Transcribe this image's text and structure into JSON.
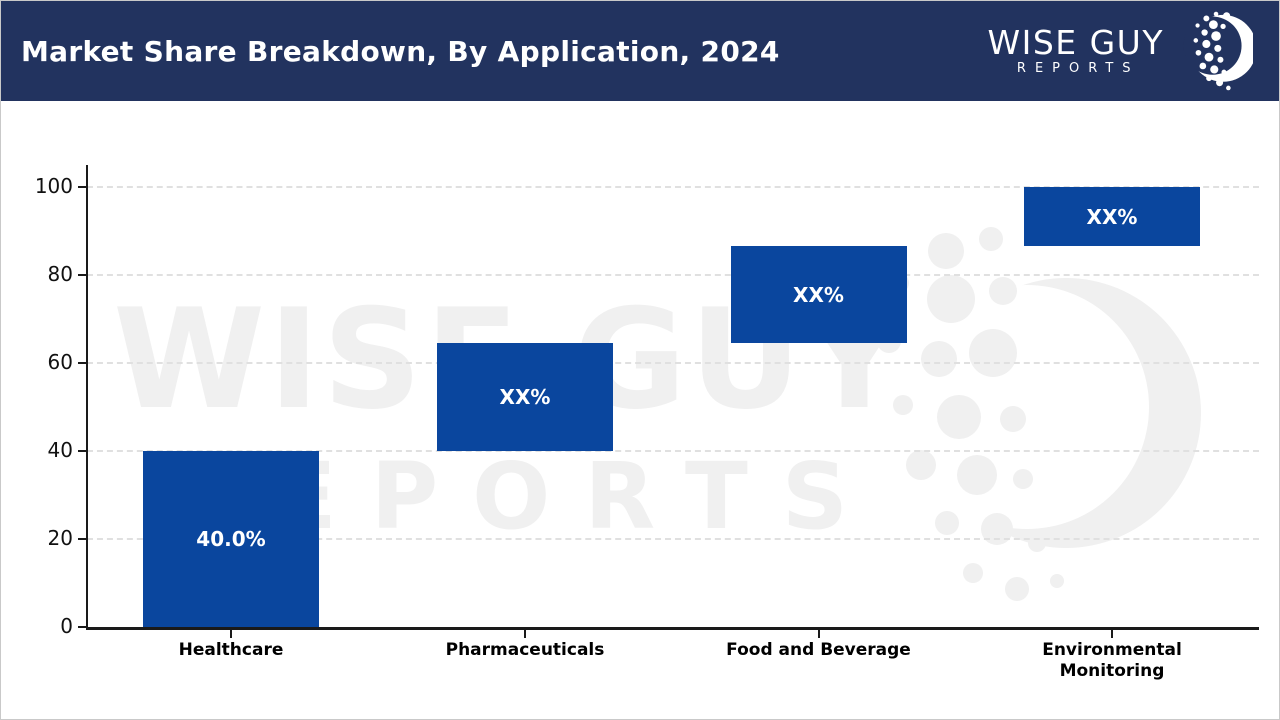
{
  "header": {
    "title": "Market Share Breakdown, By Application, 2024",
    "logo": {
      "line1": "WISE GUY",
      "line2": "REPORTS"
    }
  },
  "watermark": {
    "line1": "WISE GUY",
    "line2": "REPORTS"
  },
  "chart_data": {
    "type": "bar",
    "subtype": "stacked-waterfall",
    "title": "Market Share Breakdown, By Application, 2024",
    "categories": [
      "Healthcare",
      "Pharmaceuticals",
      "Food and Beverage",
      "Environmental Monitoring"
    ],
    "segments": [
      {
        "category": "Healthcare",
        "start": 0,
        "end": 40,
        "label": "40.0%"
      },
      {
        "category": "Pharmaceuticals",
        "start": 40,
        "end": 64.5,
        "label": "XX%"
      },
      {
        "category": "Food and Beverage",
        "start": 64.5,
        "end": 86.5,
        "label": "XX%"
      },
      {
        "category": "Environmental Monitoring",
        "start": 86.5,
        "end": 100,
        "label": "XX%"
      }
    ],
    "y_ticks": [
      0,
      20,
      40,
      60,
      80,
      100
    ],
    "ylim": [
      0,
      105
    ],
    "xlabel": "",
    "ylabel": "",
    "grid": "horizontal-dashed",
    "legend": "none"
  },
  "colors": {
    "header_bg": "#22335f",
    "bar": "#0a469e",
    "bar_label": "#ffffff",
    "grid": "#e0e0e0",
    "axis": "#1a1a1a",
    "watermark": "#f0f0f0"
  }
}
